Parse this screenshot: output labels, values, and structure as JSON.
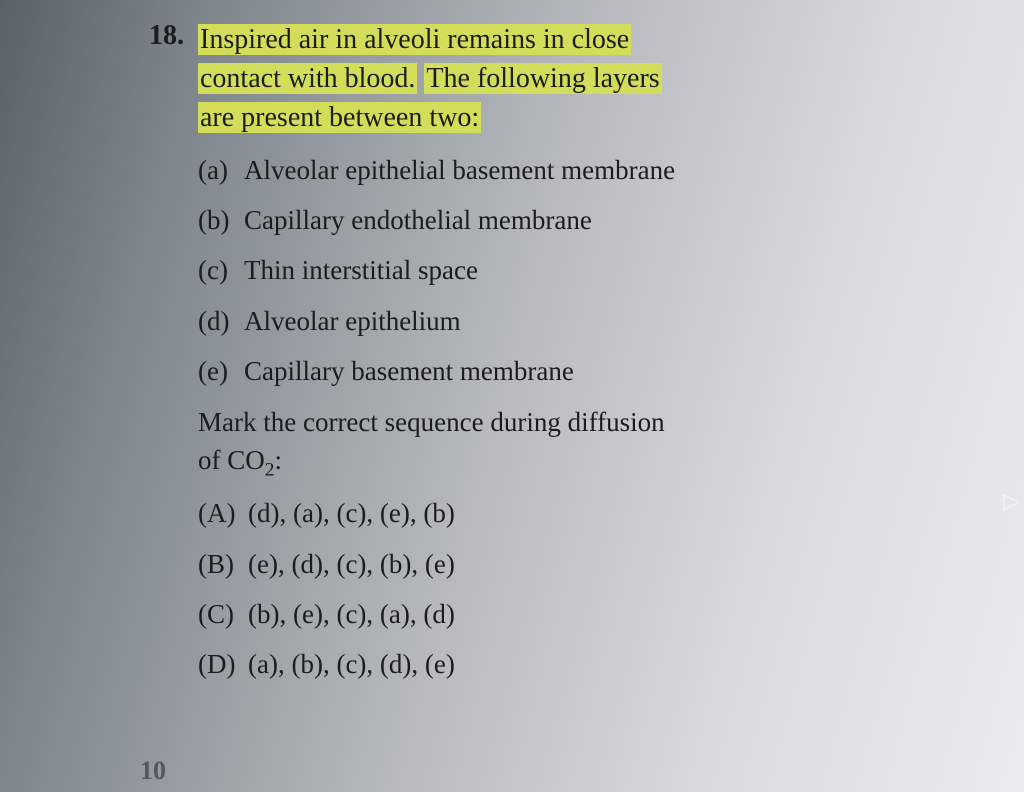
{
  "colors": {
    "highlight": "#d4dd5a",
    "text": "#1a1c1e",
    "bg_gradient_start": "#5a6268",
    "bg_gradient_end": "#e8ecee"
  },
  "fonts": {
    "body_family": "Georgia, Times New Roman, serif",
    "question_size_pt": 21,
    "option_size_pt": 20
  },
  "question": {
    "number": "18.",
    "stem_seg1": "Inspired air in alveoli remains in close",
    "stem_seg2": "contact with blood.",
    "stem_seg3": "The following layers",
    "stem_seg4": "are present between two:"
  },
  "items": {
    "a": {
      "label": "(a)",
      "text": "Alveolar epithelial basement membrane"
    },
    "b": {
      "label": "(b)",
      "text": "Capillary endothelial membrane"
    },
    "c": {
      "label": "(c)",
      "text": "Thin interstitial space"
    },
    "d": {
      "label": "(d)",
      "text": "Alveolar epithelium"
    },
    "e": {
      "label": "(e)",
      "text": "Capillary basement membrane"
    }
  },
  "instruction": {
    "line1": "Mark the correct sequence during diffusion",
    "line2_pre": "of CO",
    "line2_sub": "2",
    "line2_post": ":"
  },
  "answers": {
    "A": {
      "label": "(A)",
      "text": "(d), (a), (c), (e), (b)"
    },
    "B": {
      "label": "(B)",
      "text": "(e), (d), (c), (b), (e)"
    },
    "C": {
      "label": "(C)",
      "text": "(b), (e), (c), (a), (d)"
    },
    "D": {
      "label": "(D)",
      "text": "(a), (b), (c), (d), (e)"
    }
  },
  "partial_next": "10",
  "cursor_glyph": "▷"
}
